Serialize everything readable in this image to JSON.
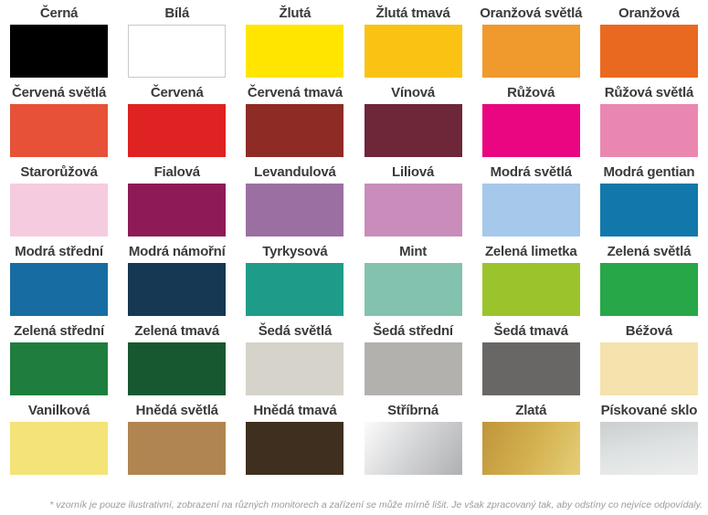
{
  "layout": {
    "columns": 6,
    "rows": 6
  },
  "swatches": [
    {
      "name": "Černá",
      "color": "#000000"
    },
    {
      "name": "Bílá",
      "color": "#FFFFFF",
      "border": "#C9C9C9"
    },
    {
      "name": "Žlutá",
      "color": "#FFE500"
    },
    {
      "name": "Žlutá tmavá",
      "color": "#FAC313"
    },
    {
      "name": "Oranžová světlá",
      "color": "#F0992C"
    },
    {
      "name": "Oranžová",
      "color": "#E96920"
    },
    {
      "name": "Červená světlá",
      "color": "#E75138"
    },
    {
      "name": "Červená",
      "color": "#DE2322"
    },
    {
      "name": "Červená tmavá",
      "color": "#8F2B25"
    },
    {
      "name": "Vínová",
      "color": "#6E2639"
    },
    {
      "name": "Růžová",
      "color": "#E90680"
    },
    {
      "name": "Růžová světlá",
      "color": "#EA87B1"
    },
    {
      "name": "Starorůžová",
      "color": "#F5CBE0"
    },
    {
      "name": "Fialová",
      "color": "#8F1A58"
    },
    {
      "name": "Levandulová",
      "color": "#9C6FA2"
    },
    {
      "name": "Liliová",
      "color": "#C98CBB"
    },
    {
      "name": "Modrá světlá",
      "color": "#A5C8EB"
    },
    {
      "name": "Modrá gentian",
      "color": "#1277AB"
    },
    {
      "name": "Modrá střední",
      "color": "#176CA2"
    },
    {
      "name": "Modrá námořní",
      "color": "#163852"
    },
    {
      "name": "Tyrkysová",
      "color": "#1F9C89"
    },
    {
      "name": "Mint",
      "color": "#82C2AE"
    },
    {
      "name": "Zelená limetka",
      "color": "#9BC42C"
    },
    {
      "name": "Zelená světlá",
      "color": "#27A747"
    },
    {
      "name": "Zelená střední",
      "color": "#1F7E3D"
    },
    {
      "name": "Zelená tmavá",
      "color": "#185830"
    },
    {
      "name": "Šedá světlá",
      "color": "#D5D3CA"
    },
    {
      "name": "Šedá střední",
      "color": "#B3B1AE"
    },
    {
      "name": "Šedá tmavá",
      "color": "#696766"
    },
    {
      "name": "Béžová",
      "color": "#F5E2AC"
    },
    {
      "name": "Vanilková",
      "color": "#F3E378"
    },
    {
      "name": "Hnědá světlá",
      "color": "#B18551"
    },
    {
      "name": "Hnědá tmavá",
      "color": "#3E2F1E"
    },
    {
      "name": "Stříbrná",
      "gradient": {
        "angle": 125,
        "stops": [
          "#FBFBFB",
          "#D3D4D6",
          "#AFB0B3"
        ]
      }
    },
    {
      "name": "Zlatá",
      "gradient": {
        "angle": 115,
        "stops": [
          "#C0953B",
          "#D3B04F",
          "#E6CE78"
        ]
      }
    },
    {
      "name": "Pískované sklo",
      "gradient": {
        "angle": 170,
        "stops": [
          "#CBCED0",
          "#DFE2E2",
          "#ECEEEE"
        ]
      }
    }
  ],
  "footer": {
    "note": "* vzorník je pouze ilustrativní, zobrazení na různých monitorech a zařízení se může mírně lišit. Je však zpracovaný tak, aby odstíny co nejvíce odpovídaly."
  }
}
